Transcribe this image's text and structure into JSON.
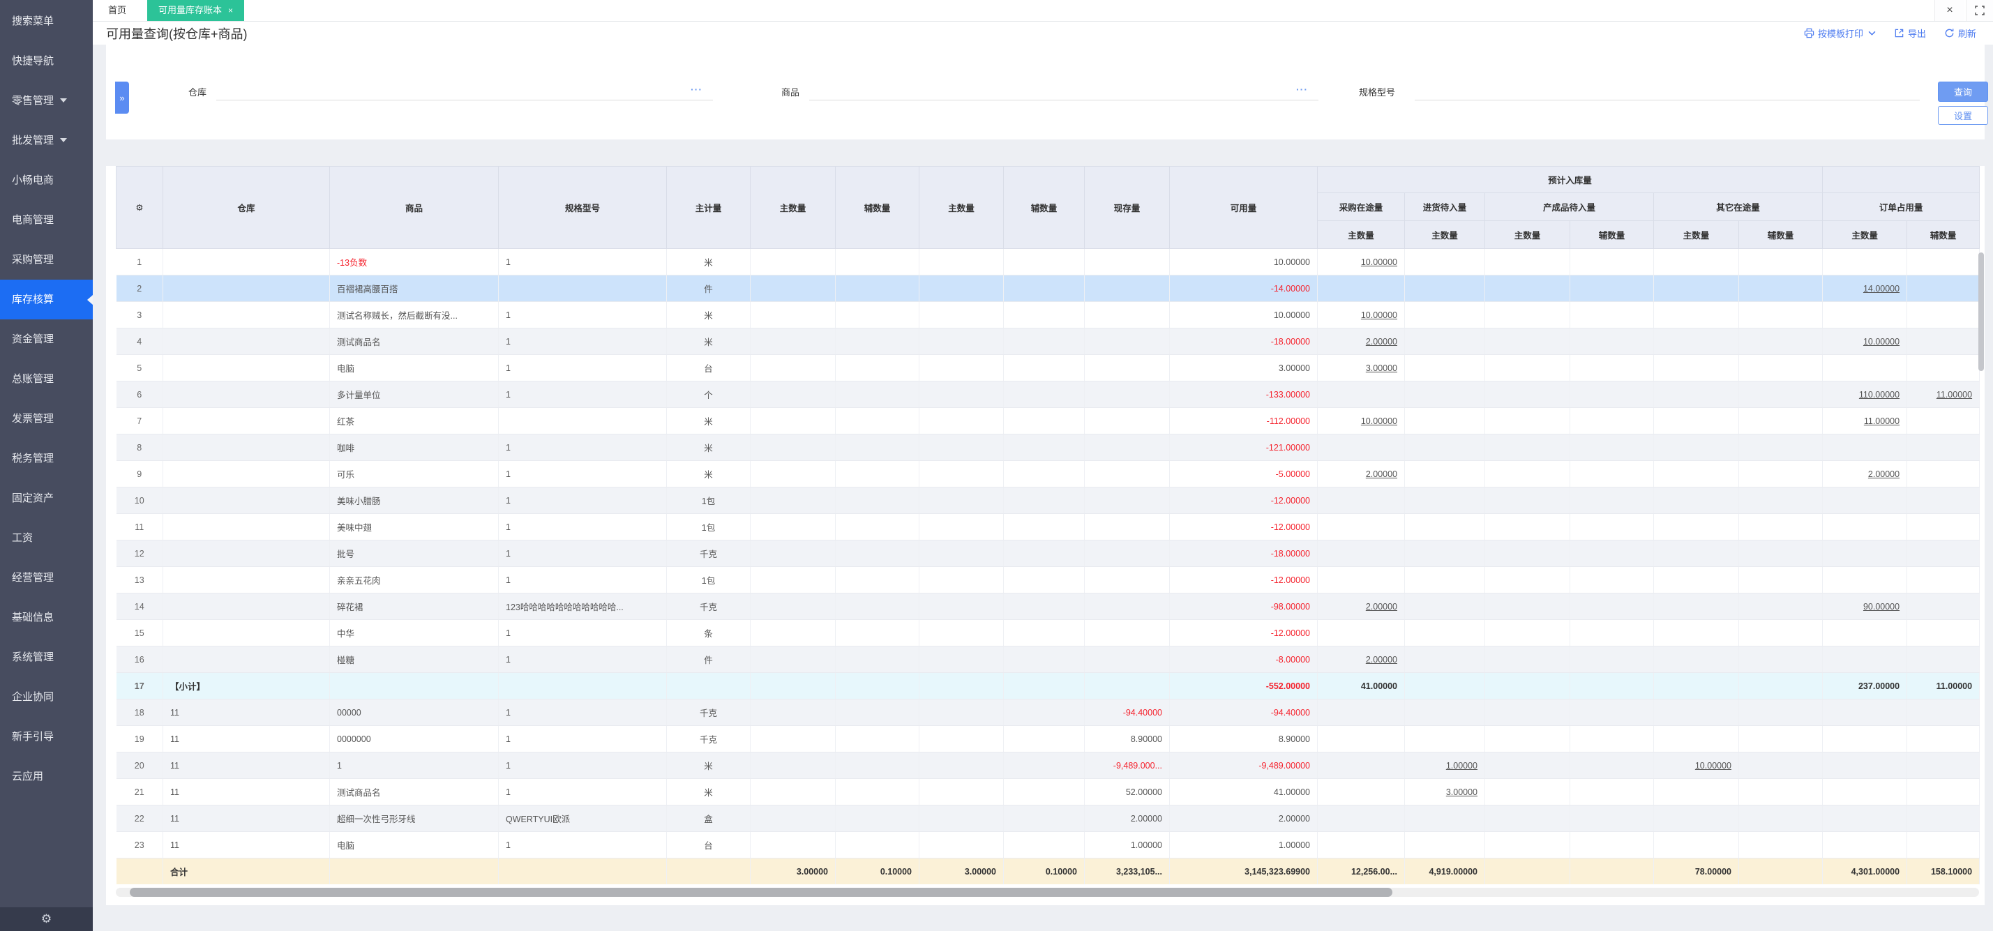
{
  "colors": {
    "accent_blue": "#4e7cf0",
    "active_tab_green": "#2cc398",
    "sidebar_bg": "#474c5f",
    "active_item_blue": "#1c6df3",
    "negative_red": "#f5222d",
    "selected_row": "#cde3fb",
    "subtotal_row": "#e7f7fc",
    "total_row": "#fbf1d7",
    "header_bg": "#e9ecf5"
  },
  "icons": {
    "gear": "⚙",
    "expand": "»",
    "ellipsis": "···",
    "close": "×"
  },
  "sidebar": {
    "items": [
      {
        "label": "搜索菜单"
      },
      {
        "label": "快捷导航"
      },
      {
        "label": "零售管理",
        "caret": true
      },
      {
        "label": "批发管理",
        "caret": true
      },
      {
        "label": "小畅电商"
      },
      {
        "label": "电商管理"
      },
      {
        "label": "采购管理"
      },
      {
        "label": "库存核算",
        "active": true
      },
      {
        "label": "资金管理"
      },
      {
        "label": "总账管理"
      },
      {
        "label": "发票管理"
      },
      {
        "label": "税务管理"
      },
      {
        "label": "固定资产"
      },
      {
        "label": "工资"
      },
      {
        "label": "经营管理"
      },
      {
        "label": "基础信息"
      },
      {
        "label": "系统管理"
      },
      {
        "label": "企业协同"
      },
      {
        "label": "新手引导"
      },
      {
        "label": "云应用"
      }
    ]
  },
  "tabs": {
    "home": "首页",
    "active": "可用量库存账本"
  },
  "page": {
    "title": "可用量查询(按仓库+商品)"
  },
  "toolbar": {
    "print": "按模板打印",
    "export": "导出",
    "refresh": "刷新"
  },
  "filters": {
    "warehouse": "仓库",
    "product": "商品",
    "spec": "规格型号",
    "search": "查询",
    "settings": "设置"
  },
  "table": {
    "headers": {
      "warehouse": "仓库",
      "product": "商品",
      "spec": "规格型号",
      "main_unit": "主计量",
      "main_qty": "主数量",
      "aux_qty": "辅数量",
      "stock": "现存量",
      "available": "可用量",
      "expected_in": "预计入库量",
      "purchase_transit": "采购在途量",
      "incoming_pending": "进货待入量",
      "finished_pending": "产成品待入量",
      "other_transit": "其它在途量",
      "order_occupied": "订单占用量"
    },
    "rows": [
      {
        "n": "1",
        "prod": "-13负数",
        "redP": 1,
        "spec": "1",
        "unit": "米",
        "avail": "10.00000",
        "purchase": "10.00000"
      },
      {
        "n": "2",
        "prod": "百褶裙高腰百搭",
        "unit": "件",
        "avail": "-14.00000",
        "redA": 1,
        "ord_m": "14.00000",
        "sel": 1
      },
      {
        "n": "3",
        "prod": "测试名称贼长，然后截断有没...",
        "spec": "1",
        "unit": "米",
        "avail": "10.00000",
        "purchase": "10.00000"
      },
      {
        "n": "4",
        "prod": "测试商品名",
        "spec": "1",
        "unit": "米",
        "avail": "-18.00000",
        "redA": 1,
        "purchase": "2.00000",
        "ord_m": "10.00000"
      },
      {
        "n": "5",
        "prod": "电脑",
        "spec": "1",
        "unit": "台",
        "avail": "3.00000",
        "purchase": "3.00000"
      },
      {
        "n": "6",
        "prod": "多计量单位",
        "spec": "1",
        "unit": "个",
        "avail": "-133.00000",
        "redA": 1,
        "ord_m": "110.00000",
        "ord_a": "11.00000"
      },
      {
        "n": "7",
        "prod": "红茶",
        "unit": "米",
        "avail": "-112.00000",
        "redA": 1,
        "purchase": "10.00000",
        "ord_m": "11.00000"
      },
      {
        "n": "8",
        "prod": "咖啡",
        "spec": "1",
        "unit": "米",
        "avail": "-121.00000",
        "redA": 1
      },
      {
        "n": "9",
        "prod": "可乐",
        "spec": "1",
        "unit": "米",
        "avail": "-5.00000",
        "redA": 1,
        "purchase": "2.00000",
        "ord_m": "2.00000"
      },
      {
        "n": "10",
        "prod": "美味小腊肠",
        "spec": "1",
        "unit": "1包",
        "avail": "-12.00000",
        "redA": 1
      },
      {
        "n": "11",
        "prod": "美味中翅",
        "spec": "1",
        "unit": "1包",
        "avail": "-12.00000",
        "redA": 1
      },
      {
        "n": "12",
        "prod": "批号",
        "spec": "1",
        "unit": "千克",
        "avail": "-18.00000",
        "redA": 1
      },
      {
        "n": "13",
        "prod": "亲亲五花肉",
        "spec": "1",
        "unit": "1包",
        "avail": "-12.00000",
        "redA": 1
      },
      {
        "n": "14",
        "prod": "碎花裙",
        "spec": "123哈哈哈哈哈哈哈哈哈哈哈...",
        "unit": "千克",
        "avail": "-98.00000",
        "redA": 1,
        "purchase": "2.00000",
        "ord_m": "90.00000"
      },
      {
        "n": "15",
        "prod": "中华",
        "spec": "1",
        "unit": "条",
        "avail": "-12.00000",
        "redA": 1
      },
      {
        "n": "16",
        "prod": "椪糖",
        "spec": "1",
        "unit": "件",
        "avail": "-8.00000",
        "redA": 1,
        "purchase": "2.00000"
      },
      {
        "n": "17",
        "wh": "【小计】",
        "sub": 1,
        "avail": "-552.00000",
        "redA": 1,
        "purchase": "41.00000",
        "ord_m": "237.00000",
        "ord_a": "11.00000"
      },
      {
        "n": "18",
        "wh": "11",
        "prod": "00000",
        "spec": "1",
        "unit": "千克",
        "stock": "-94.40000",
        "redS": 1,
        "avail": "-94.40000",
        "redA": 1
      },
      {
        "n": "19",
        "wh": "11",
        "prod": "0000000",
        "spec": "1",
        "unit": "千克",
        "stock": "8.90000",
        "avail": "8.90000"
      },
      {
        "n": "20",
        "wh": "11",
        "prod": "1",
        "spec": "1",
        "unit": "米",
        "stock": "-9,489.000...",
        "redS": 1,
        "avail": "-9,489.00000",
        "redA": 1,
        "incoming": "1.00000",
        "oth_m": "10.00000"
      },
      {
        "n": "21",
        "wh": "11",
        "prod": "测试商品名",
        "spec": "1",
        "unit": "米",
        "stock": "52.00000",
        "avail": "41.00000",
        "incoming": "3.00000"
      },
      {
        "n": "22",
        "wh": "11",
        "prod": "超细一次性弓形牙线",
        "spec": "QWERTYUI欧派",
        "unit": "盒",
        "stock": "2.00000",
        "avail": "2.00000"
      },
      {
        "n": "23",
        "wh": "11",
        "prod": "电脑",
        "spec": "1",
        "unit": "台",
        "stock": "1.00000",
        "avail": "1.00000"
      }
    ],
    "total": {
      "label": "合计",
      "m1": "3.00000",
      "a1": "0.10000",
      "m2": "3.00000",
      "a2": "0.10000",
      "stock": "3,233,105...",
      "avail": "3,145,323.69900",
      "purchase": "12,256.00...",
      "incoming": "4,919.00000",
      "oth_m": "78.00000",
      "ord_m": "4,301.00000",
      "ord_a": "158.10000"
    }
  }
}
